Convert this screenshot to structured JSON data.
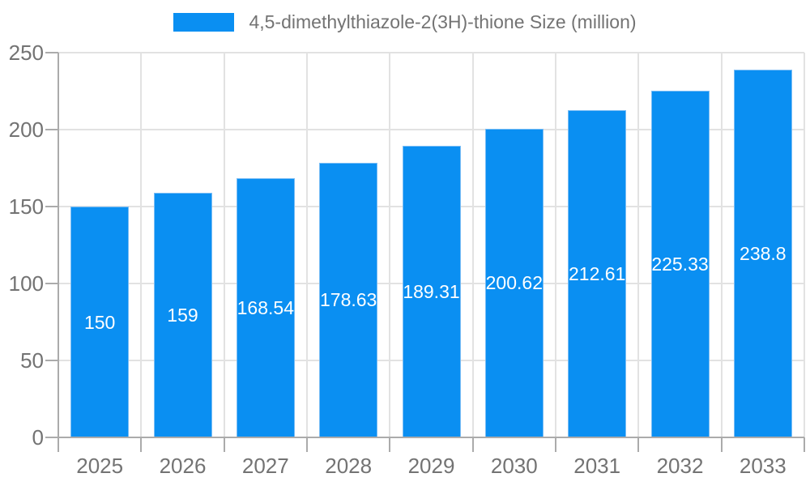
{
  "legend": {
    "label": "4,5-dimethylthiazole-2(3H)-thione Size (million)"
  },
  "colors": {
    "bar": "#0a8ff2",
    "grid": "#e2e2e2",
    "axis_line": "#ababab",
    "axis_text": "#737373",
    "bar_label": "#ffffff"
  },
  "chart_data": {
    "type": "bar",
    "title": "",
    "categories": [
      "2025",
      "2026",
      "2027",
      "2028",
      "2029",
      "2030",
      "2031",
      "2032",
      "2033"
    ],
    "series": [
      {
        "name": "4,5-dimethylthiazole-2(3H)-thione Size (million)",
        "values": [
          150,
          159,
          168.54,
          178.63,
          189.31,
          200.62,
          212.61,
          225.33,
          238.8
        ]
      }
    ],
    "value_labels": [
      "150",
      "159",
      "168.54",
      "178.63",
      "189.31",
      "200.62",
      "212.61",
      "225.33",
      "238.8"
    ],
    "xlabel": "",
    "ylabel": "",
    "ylim": [
      0,
      250
    ],
    "yticks": [
      0,
      50,
      100,
      150,
      200,
      250
    ],
    "grid": true,
    "legend_position": "top"
  }
}
